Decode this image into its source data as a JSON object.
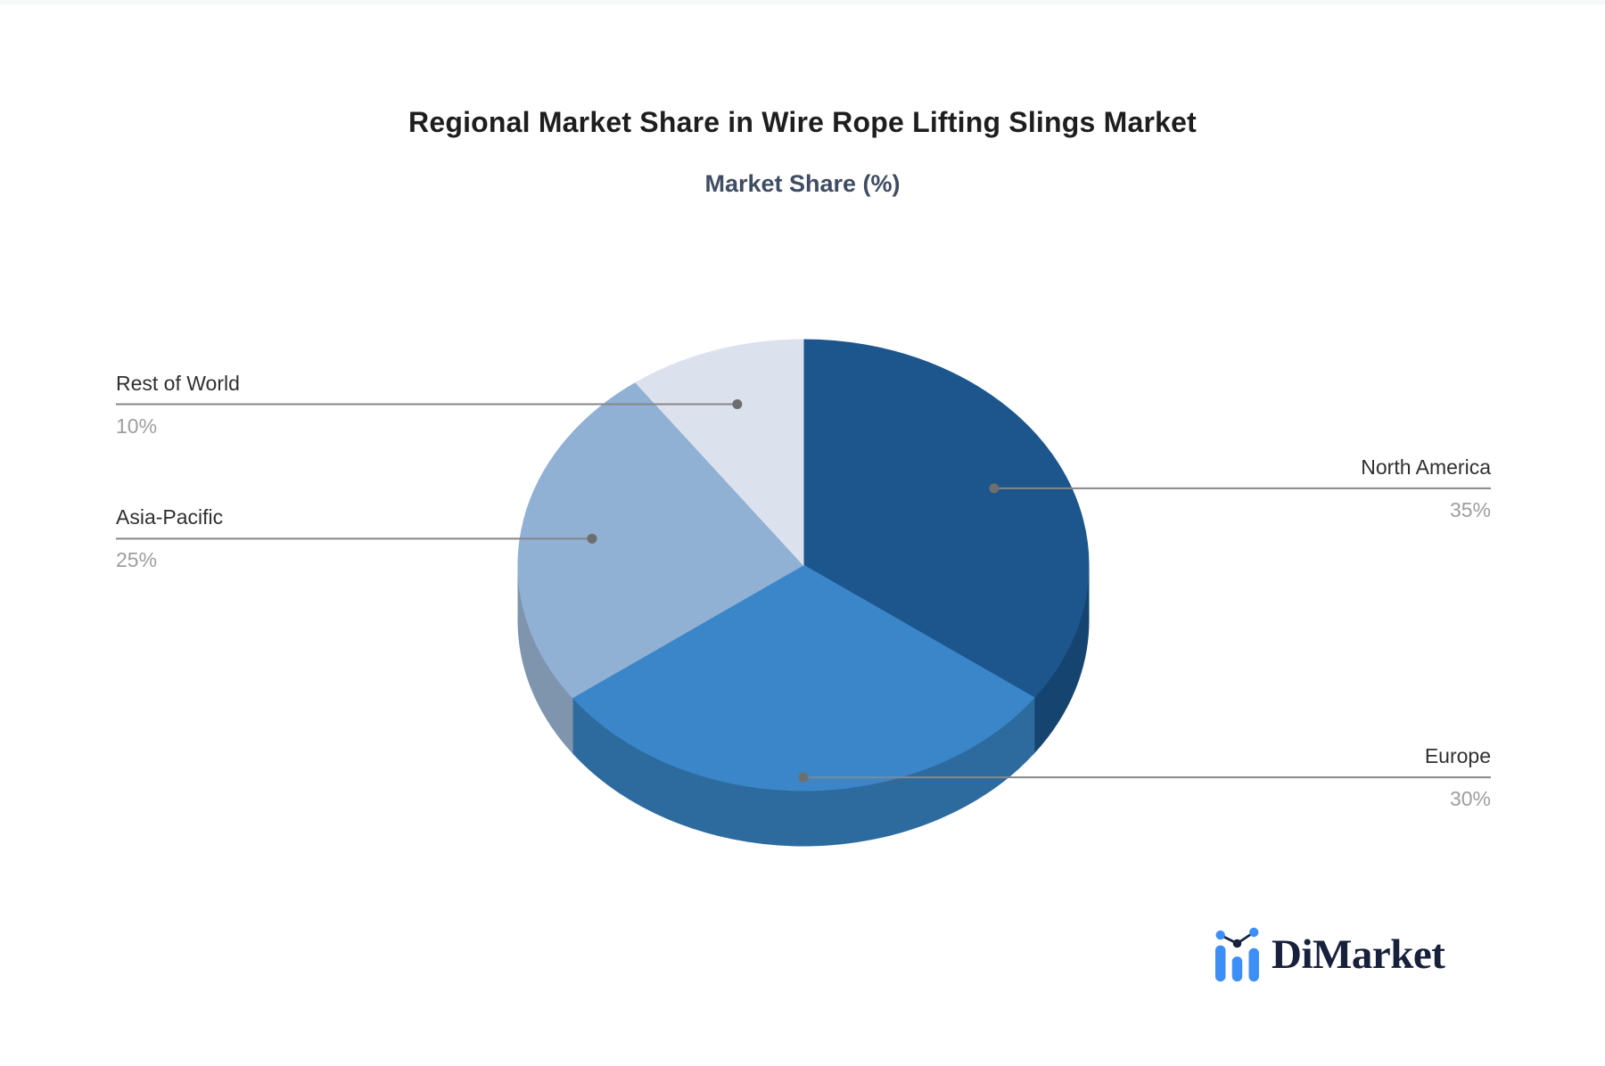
{
  "header": {
    "title": "Regional Market Share in Wire Rope Lifting Slings Market",
    "subtitle": "Market Share (%)"
  },
  "chart_data": {
    "type": "pie",
    "style": "3d",
    "title": "Regional Market Share in Wire Rope Lifting Slings Market",
    "subtitle": "Market Share (%)",
    "unit": "%",
    "start_angle_deg": 0,
    "direction": "clockwise",
    "legend": "none",
    "slices": [
      {
        "label": "North America",
        "value": 35,
        "pct_label": "35%",
        "color": "#1c568c",
        "side_color": "#154471",
        "label_side": "right"
      },
      {
        "label": "Europe",
        "value": 30,
        "pct_label": "30%",
        "color": "#3a86c8",
        "side_color": "#2d6b9e",
        "label_side": "right"
      },
      {
        "label": "Asia-Pacific",
        "value": 25,
        "pct_label": "25%",
        "color": "#90b0d4",
        "side_color": "#7e95ad",
        "label_side": "left"
      },
      {
        "label": "Rest of World",
        "value": 10,
        "pct_label": "10%",
        "color": "#dbe2ee",
        "side_color": "#c9d2e0",
        "label_side": "left"
      }
    ]
  },
  "colors": {
    "background": "#ffffff",
    "title_text": "#1e1e1e",
    "subtitle_text": "#3f4c62",
    "label_text": "#303030",
    "pct_text": "#9e9e9e",
    "leader_line": "#878787",
    "leader_dot": "#6e6e6e"
  },
  "logo": {
    "text": "DiMarket",
    "icon": "bar-chart-logo-icon",
    "bar_color": "#3e8ef7",
    "accent_color": "#17213c"
  }
}
